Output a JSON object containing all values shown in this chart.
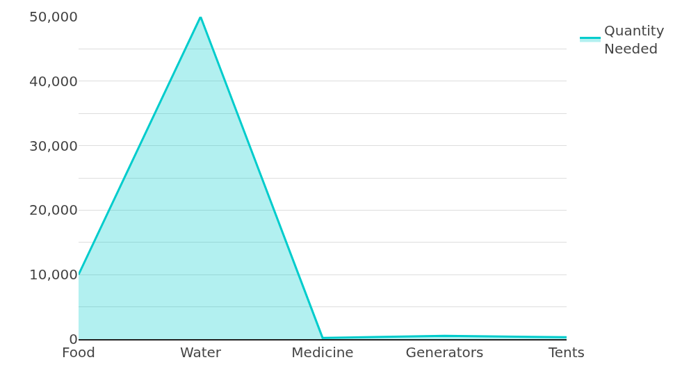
{
  "chart_data": {
    "type": "area",
    "categories": [
      "Food",
      "Water",
      "Medicine",
      "Generators",
      "Tents"
    ],
    "series": [
      {
        "name": "Quantity Needed",
        "color": "#00cccc",
        "values": [
          10000,
          50000,
          200,
          500,
          300
        ]
      }
    ],
    "ylim": [
      0,
      50000
    ],
    "yticks": [
      {
        "value": 0,
        "label": "0"
      },
      {
        "value": 5000,
        "label": null
      },
      {
        "value": 10000,
        "label": "10,000"
      },
      {
        "value": 15000,
        "label": null
      },
      {
        "value": 20000,
        "label": "20,000"
      },
      {
        "value": 25000,
        "label": null
      },
      {
        "value": 30000,
        "label": "30,000"
      },
      {
        "value": 35000,
        "label": null
      },
      {
        "value": 40000,
        "label": "40,000"
      },
      {
        "value": 45000,
        "label": null
      },
      {
        "value": 50000,
        "label": "50,000"
      }
    ],
    "grid": "y",
    "legend": "top right"
  }
}
